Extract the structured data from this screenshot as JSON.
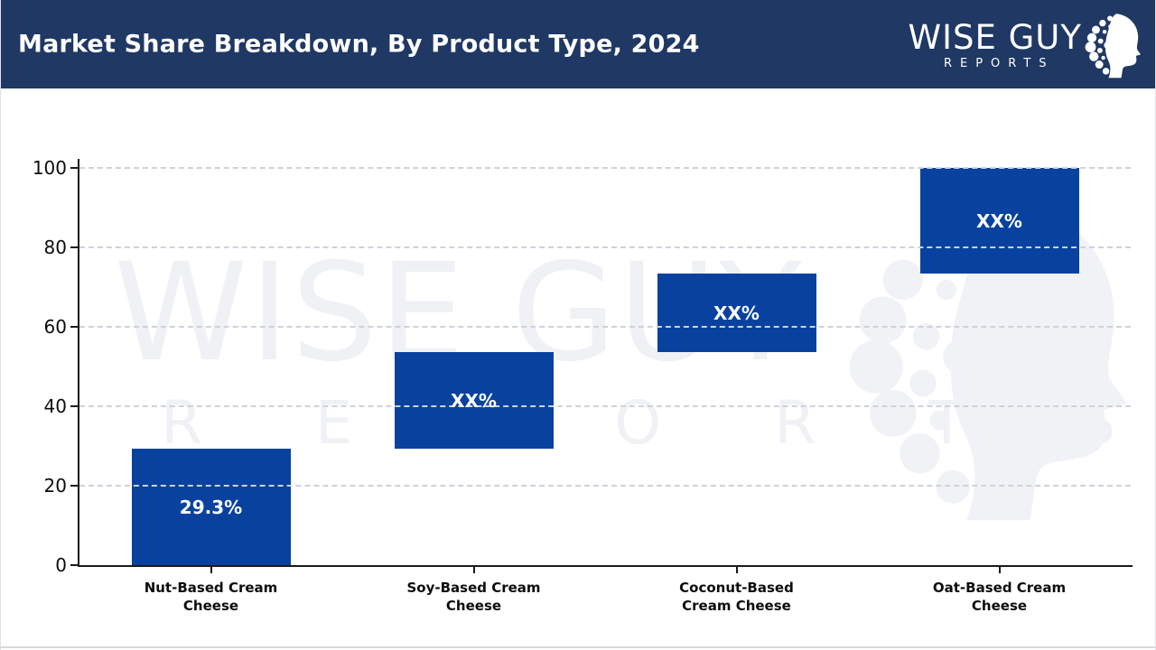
{
  "header": {
    "title": "Market Share Breakdown, By Product Type, 2024",
    "bg_color": "#1f3864",
    "logo": {
      "line1": "WISE GUY",
      "line2": "REPORTS"
    }
  },
  "watermark": {
    "line1": "WISE GUY",
    "line2": "REPORTS"
  },
  "chart_data": {
    "type": "bar",
    "subtype": "waterfall",
    "title": "Market Share Breakdown, By Product Type, 2024",
    "categories": [
      "Nut-Based Cream Cheese",
      "Soy-Based Cream Cheese",
      "Coconut-Based Cream Cheese",
      "Oat-Based Cream Cheese"
    ],
    "category_lines": [
      [
        "Nut-Based Cream",
        "Cheese"
      ],
      [
        "Soy-Based Cream",
        "Cheese"
      ],
      [
        "Coconut-Based",
        "Cream Cheese"
      ],
      [
        "Oat-Based Cream",
        "Cheese"
      ]
    ],
    "segments": [
      {
        "start": 0,
        "end": 29.3,
        "label": "29.3%"
      },
      {
        "start": 29.3,
        "end": 53.6,
        "label": "XX%"
      },
      {
        "start": 53.6,
        "end": 73.4,
        "label": "XX%"
      },
      {
        "start": 73.4,
        "end": 100,
        "label": "XX%"
      }
    ],
    "xlabel": "",
    "ylabel": "",
    "ylim": [
      0,
      100
    ],
    "yticks": [
      0,
      20,
      40,
      60,
      80,
      100
    ],
    "grid": "horizontal-dashed",
    "legend": "none",
    "bar_color": "#08429e"
  }
}
